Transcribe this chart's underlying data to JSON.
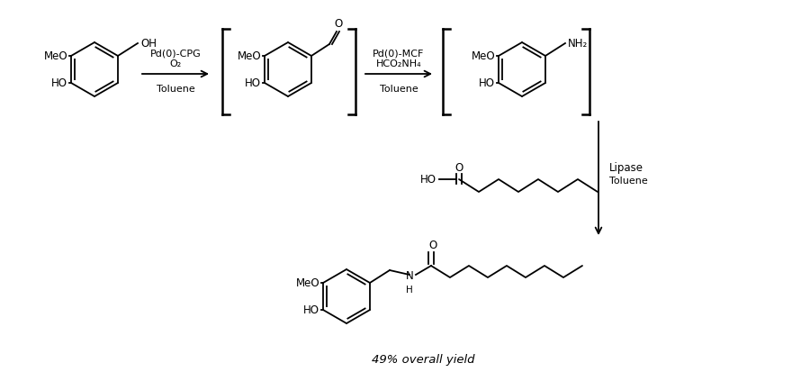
{
  "background_color": "#ffffff",
  "line_color": "#000000",
  "figure_width": 8.9,
  "figure_height": 4.14,
  "dpi": 100,
  "arrow1_line1": "Pd(0)-CPG",
  "arrow1_line2": "O₂",
  "arrow1_line3": "Toluene",
  "arrow2_line1": "Pd(0)-MCF",
  "arrow2_line2": "HCO₂NH₄",
  "arrow2_line3": "Toluene",
  "arrow3_line1": "Lipase",
  "arrow3_line2": "Toluene",
  "yield_text": "49% overall yield"
}
